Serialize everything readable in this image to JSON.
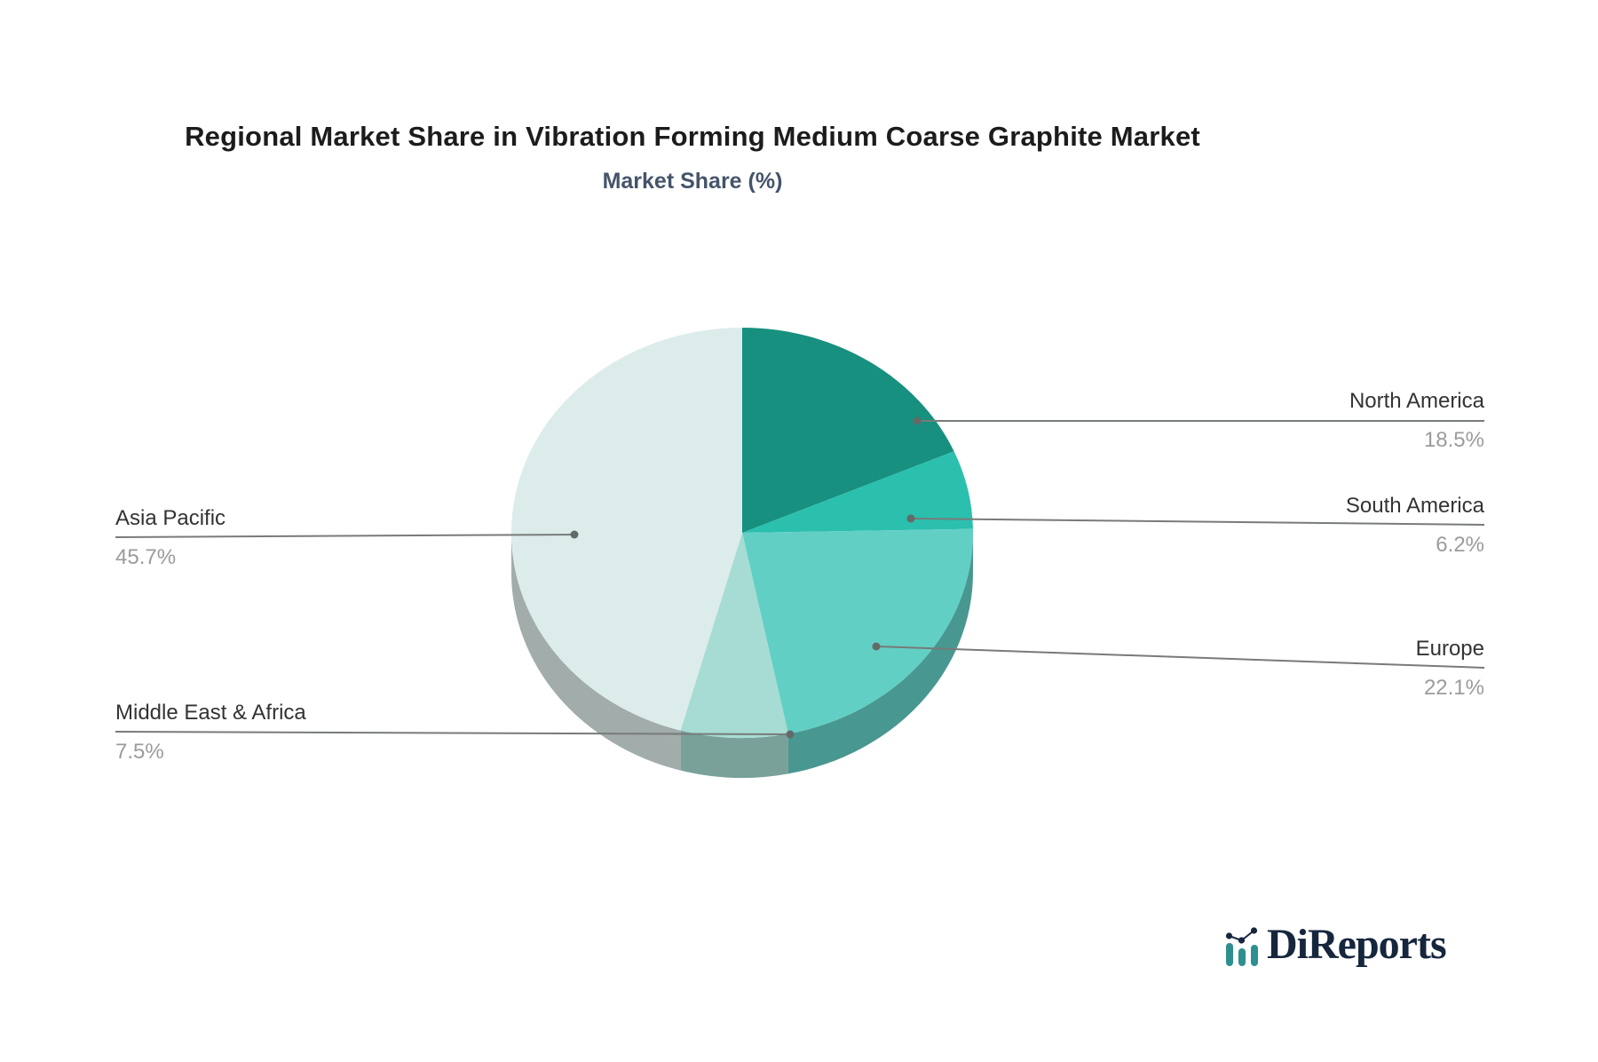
{
  "header": {
    "title": "Regional Market Share in Vibration Forming Medium Coarse Graphite Market",
    "subtitle": "Market Share (%)"
  },
  "chart_data": {
    "type": "pie",
    "title": "Regional Market Share in Vibration Forming Medium Coarse Graphite Market",
    "subtitle": "Market Share (%)",
    "unit": "%",
    "style": "3d-pie",
    "start_angle": "top",
    "direction": "clockwise",
    "legend_position": "outside-callouts",
    "slices": [
      {
        "name": "North America",
        "value": 18.5,
        "pct_label": "18.5%",
        "color": "#17907f"
      },
      {
        "name": "South America",
        "value": 6.2,
        "pct_label": "6.2%",
        "color": "#2bbfae"
      },
      {
        "name": "Europe",
        "value": 22.1,
        "pct_label": "22.1%",
        "color": "#62cfc5"
      },
      {
        "name": "Middle East & Africa",
        "value": 7.5,
        "pct_label": "7.5%",
        "color": "#a6dcd3"
      },
      {
        "name": "Asia Pacific",
        "value": 45.7,
        "pct_label": "45.7%",
        "color": "#dcecea"
      }
    ]
  },
  "colors": {
    "title_text": "#1c1c1c",
    "subtitle_text": "#44546a",
    "label_text": "#333333",
    "pct_text": "#9b9b9b",
    "leader_line": "#777b79",
    "callout_dot": "#636b68",
    "logo_bar": "#2e8f8f",
    "logo_text": "#15263d"
  },
  "logo": {
    "text": "DiReports"
  }
}
